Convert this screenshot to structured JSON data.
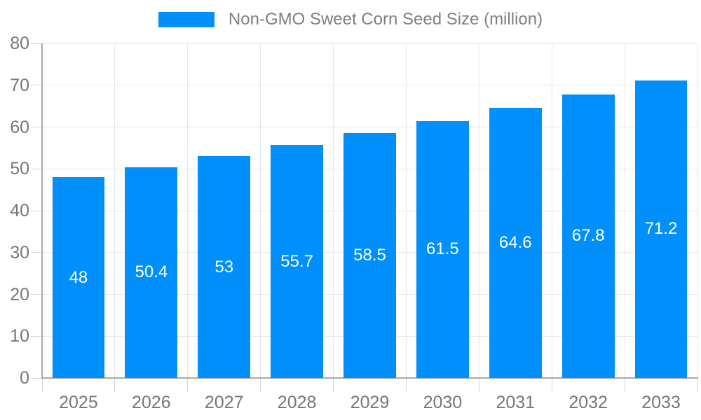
{
  "legend": {
    "label": "Non-GMO Sweet Corn Seed Size (million)"
  },
  "chart_data": {
    "type": "bar",
    "title": "Non-GMO Sweet Corn Seed Size (million)",
    "categories": [
      "2025",
      "2026",
      "2027",
      "2028",
      "2029",
      "2030",
      "2031",
      "2032",
      "2033"
    ],
    "series": [
      {
        "name": "Non-GMO Sweet Corn Seed Size (million)",
        "values": [
          48,
          50.4,
          53,
          55.7,
          58.5,
          61.5,
          64.6,
          67.8,
          71.2
        ]
      }
    ],
    "value_labels": [
      "48",
      "50.4",
      "53",
      "55.7",
      "58.5",
      "61.5",
      "64.6",
      "67.8",
      "71.2"
    ],
    "xlabel": "",
    "ylabel": "",
    "ylim": [
      0,
      80
    ],
    "yticks": [
      0,
      10,
      20,
      30,
      40,
      50,
      60,
      70,
      80
    ],
    "grid": true,
    "legend_position": "top",
    "colors": {
      "bar": "#008FFB",
      "grid": "#e7e7e7",
      "axis_line": "#a9a9a9",
      "tick": "#d4d4d4",
      "axis_label": "#767676",
      "legend_label": "#7f7f7f",
      "value_label": "#ffffff",
      "background": "#ffffff"
    }
  }
}
